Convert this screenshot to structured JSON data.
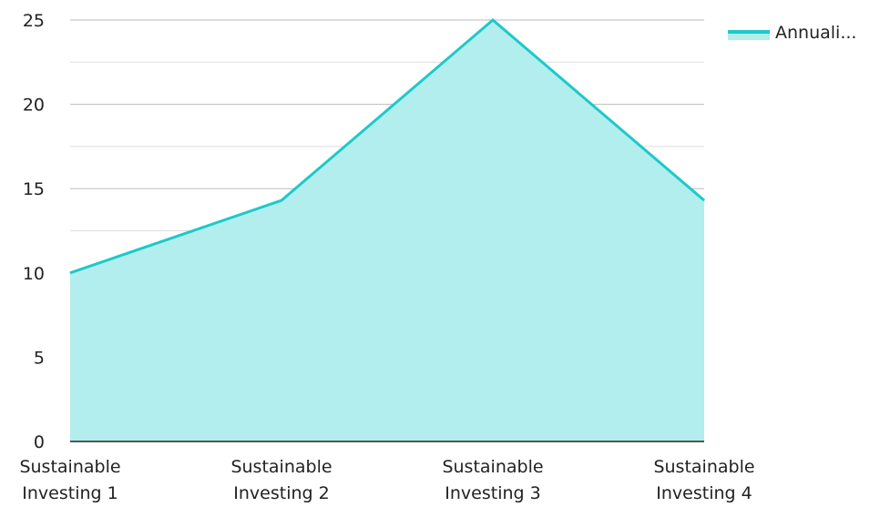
{
  "chart_data": {
    "type": "area",
    "categories": [
      [
        "Sustainable",
        "Investing 1"
      ],
      [
        "Sustainable",
        "Investing 2"
      ],
      [
        "Sustainable",
        "Investing 3"
      ],
      [
        "Sustainable",
        "Investing 4"
      ]
    ],
    "series": [
      {
        "name": "Annuali...",
        "values": [
          10,
          14.3,
          25,
          14.3
        ]
      }
    ],
    "ylim": [
      0,
      25
    ],
    "yticks": [
      0,
      5,
      10,
      15,
      20,
      25
    ],
    "grid": true,
    "legend_position": "top-right",
    "colors": {
      "line": "#1ec9c9",
      "fill": "#b2eeed",
      "grid_major": "#bbbbbb",
      "grid_minor": "#dddddd",
      "axis": "#222222"
    }
  }
}
